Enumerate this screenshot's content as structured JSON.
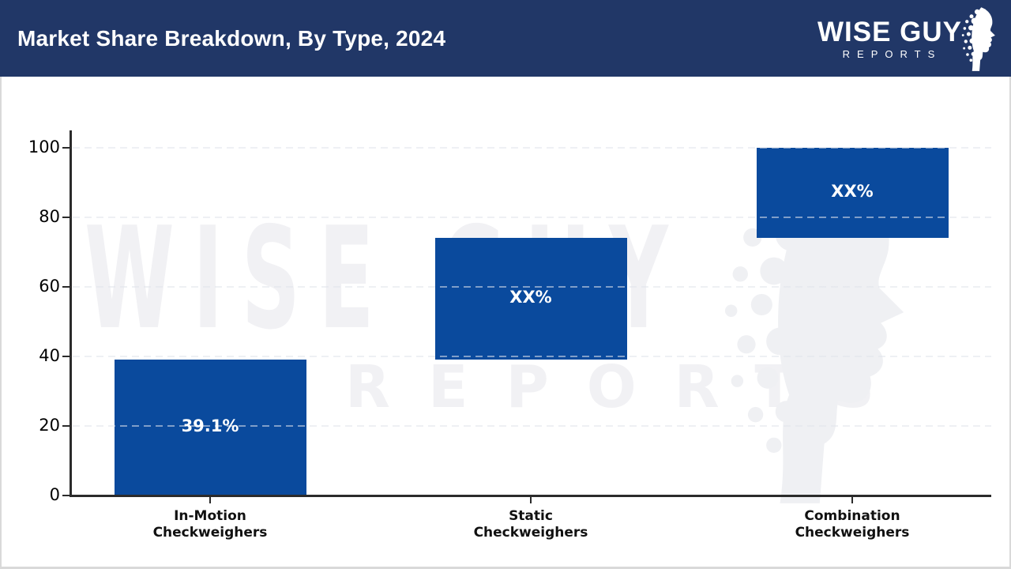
{
  "header": {
    "title": "Market Share Breakdown, By Type, 2024",
    "logo": {
      "wordmark": "WISE GUY",
      "subtext": "REPORTS"
    }
  },
  "watermark": {
    "wordmark": "WISE GUY",
    "subtext": "REPORTS"
  },
  "chart_data": {
    "type": "waterfall",
    "title": "Market Share Breakdown, By Type, 2024",
    "categories": [
      "In-Motion Checkweighers",
      "Static Checkweighers",
      "Combination Checkweighers"
    ],
    "segments": [
      {
        "category": "In-Motion\nCheckweighers",
        "start": 0,
        "end": 39.1,
        "label": "39.1%"
      },
      {
        "category": "Static\nCheckweighers",
        "start": 39.1,
        "end": 74.1,
        "label": "XX%"
      },
      {
        "category": "Combination\nCheckweighers",
        "start": 74.1,
        "end": 100,
        "label": "XX%"
      }
    ],
    "ylim": [
      0,
      100
    ],
    "yticks": [
      0,
      20,
      40,
      60,
      80,
      100
    ],
    "xlabel": "",
    "ylabel": "",
    "grid": "horizontal-dashed",
    "legend": "none",
    "bar_color": "#0a4a9d",
    "bar_label_color": "#ffffff"
  },
  "colors": {
    "header_bg": "#213767",
    "bar": "#0a4a9d",
    "axis": "#2b2b2b",
    "grid": "#d2d5dc",
    "watermark": "#f1f1f4",
    "border": "#d9d9d9"
  }
}
